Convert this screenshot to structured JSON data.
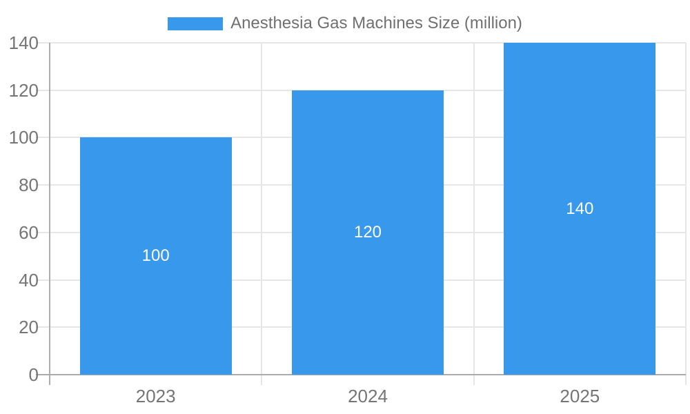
{
  "legend": {
    "label": "Anesthesia Gas Machines Size (million)"
  },
  "colors": {
    "bar": "#3899EC",
    "grid": "#E6E6E6",
    "axis": "#ABABAB",
    "tick_text": "#757575",
    "legend_text": "#707070",
    "data_label_text": "#FFFFFF",
    "background": "#FFFFFF"
  },
  "chart_data": {
    "type": "bar",
    "title": "Anesthesia Gas Machines Size (million)",
    "categories": [
      "2023",
      "2024",
      "2025"
    ],
    "values": [
      100,
      120,
      140
    ],
    "data_labels": [
      "100",
      "120",
      "140"
    ],
    "xlabel": "",
    "ylabel": "",
    "ylim": [
      0,
      140
    ],
    "yticks": [
      0,
      20,
      40,
      60,
      80,
      100,
      120,
      140
    ],
    "grid": true,
    "legend_position": "top-center"
  }
}
